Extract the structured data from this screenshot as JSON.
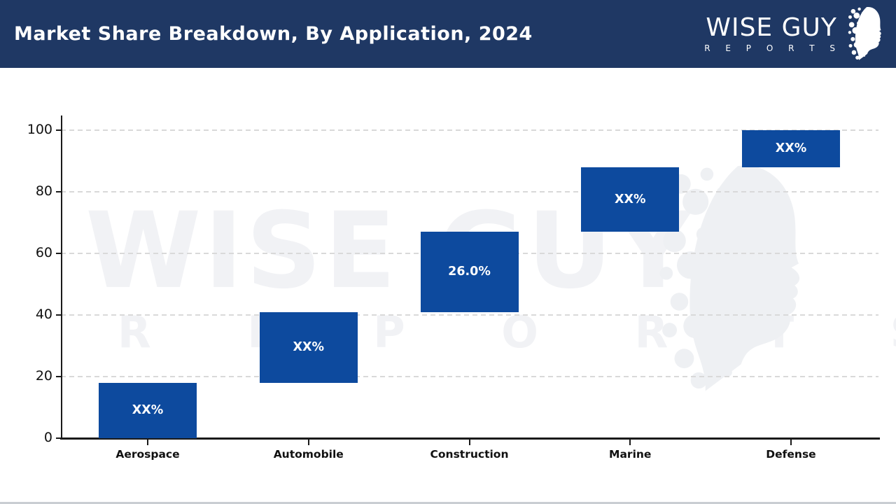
{
  "header": {
    "title": "Market Share Breakdown, By Application, 2024",
    "logo_brand": "WISE GUY",
    "logo_sub": "R E P O R T S",
    "bg_color": "#1f3864"
  },
  "watermark": {
    "brand": "WISE GUY",
    "sub": "R E P O R T S"
  },
  "chart_data": {
    "type": "bar",
    "subtype": "waterfall",
    "title": "Market Share Breakdown, By Application, 2024",
    "categories": [
      "Aerospace",
      "Automobile",
      "Construction",
      "Marine",
      "Defense"
    ],
    "segments": [
      {
        "category": "Aerospace",
        "start": 0,
        "end": 18,
        "label": "XX%"
      },
      {
        "category": "Automobile",
        "start": 18,
        "end": 41,
        "label": "XX%"
      },
      {
        "category": "Construction",
        "start": 41,
        "end": 67,
        "label": "26.0%"
      },
      {
        "category": "Marine",
        "start": 67,
        "end": 88,
        "label": "XX%"
      },
      {
        "category": "Defense",
        "start": 88,
        "end": 100,
        "label": "XX%"
      }
    ],
    "yticks": [
      0,
      20,
      40,
      60,
      80,
      100
    ],
    "ylim": [
      0,
      104
    ],
    "xlabel": "",
    "ylabel": "",
    "bar_color": "#0d4a9e",
    "grid": "horizontal dashed",
    "legend_position": "none"
  }
}
